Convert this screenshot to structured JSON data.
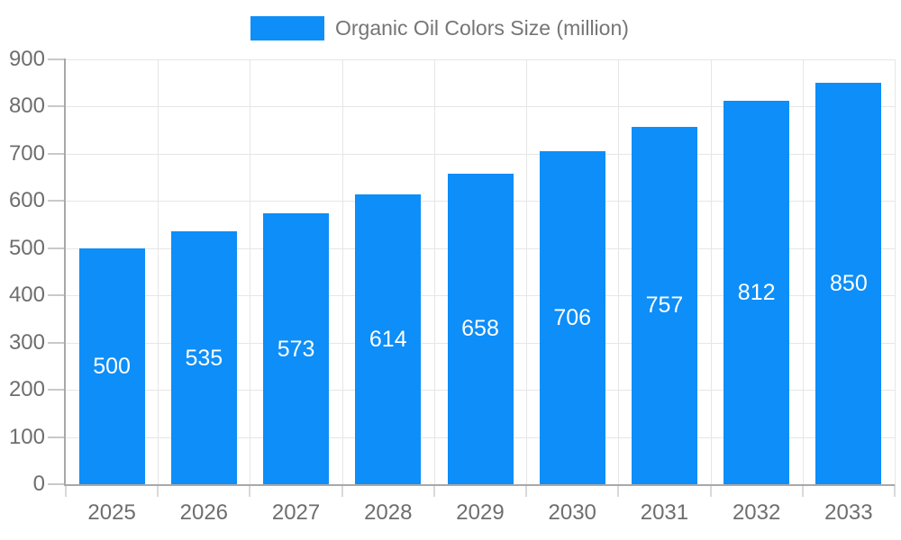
{
  "legend": {
    "position": "top",
    "items": [
      {
        "label": "Organic Oil Colors Size (million)",
        "swatch_color": "#0d8ef8"
      }
    ]
  },
  "chart_data": {
    "type": "bar",
    "title": "Organic Oil Colors Size (million)",
    "series_name": "Organic Oil Colors Size (million)",
    "categories": [
      "2025",
      "2026",
      "2027",
      "2028",
      "2029",
      "2030",
      "2031",
      "2032",
      "2033"
    ],
    "values": [
      500,
      535,
      573,
      614,
      658,
      706,
      757,
      812,
      850
    ],
    "xlabel": "",
    "ylabel": "",
    "ylim": [
      0,
      900
    ],
    "yticks": [
      0,
      100,
      200,
      300,
      400,
      500,
      600,
      700,
      800,
      900
    ],
    "grid": true,
    "legend_position": "top",
    "value_label_position": "inside-center",
    "colors": {
      "bar": "#0d8ef8",
      "value_label": "#ffffff",
      "axis_label": "#6e6e6e",
      "legend_text": "#757575",
      "gridline": "#e6e6e6",
      "axis_line": "#a8a8a8",
      "y_tick": "#c9c9c9",
      "x_tick": "#d9d9d9",
      "background": "#ffffff"
    }
  }
}
